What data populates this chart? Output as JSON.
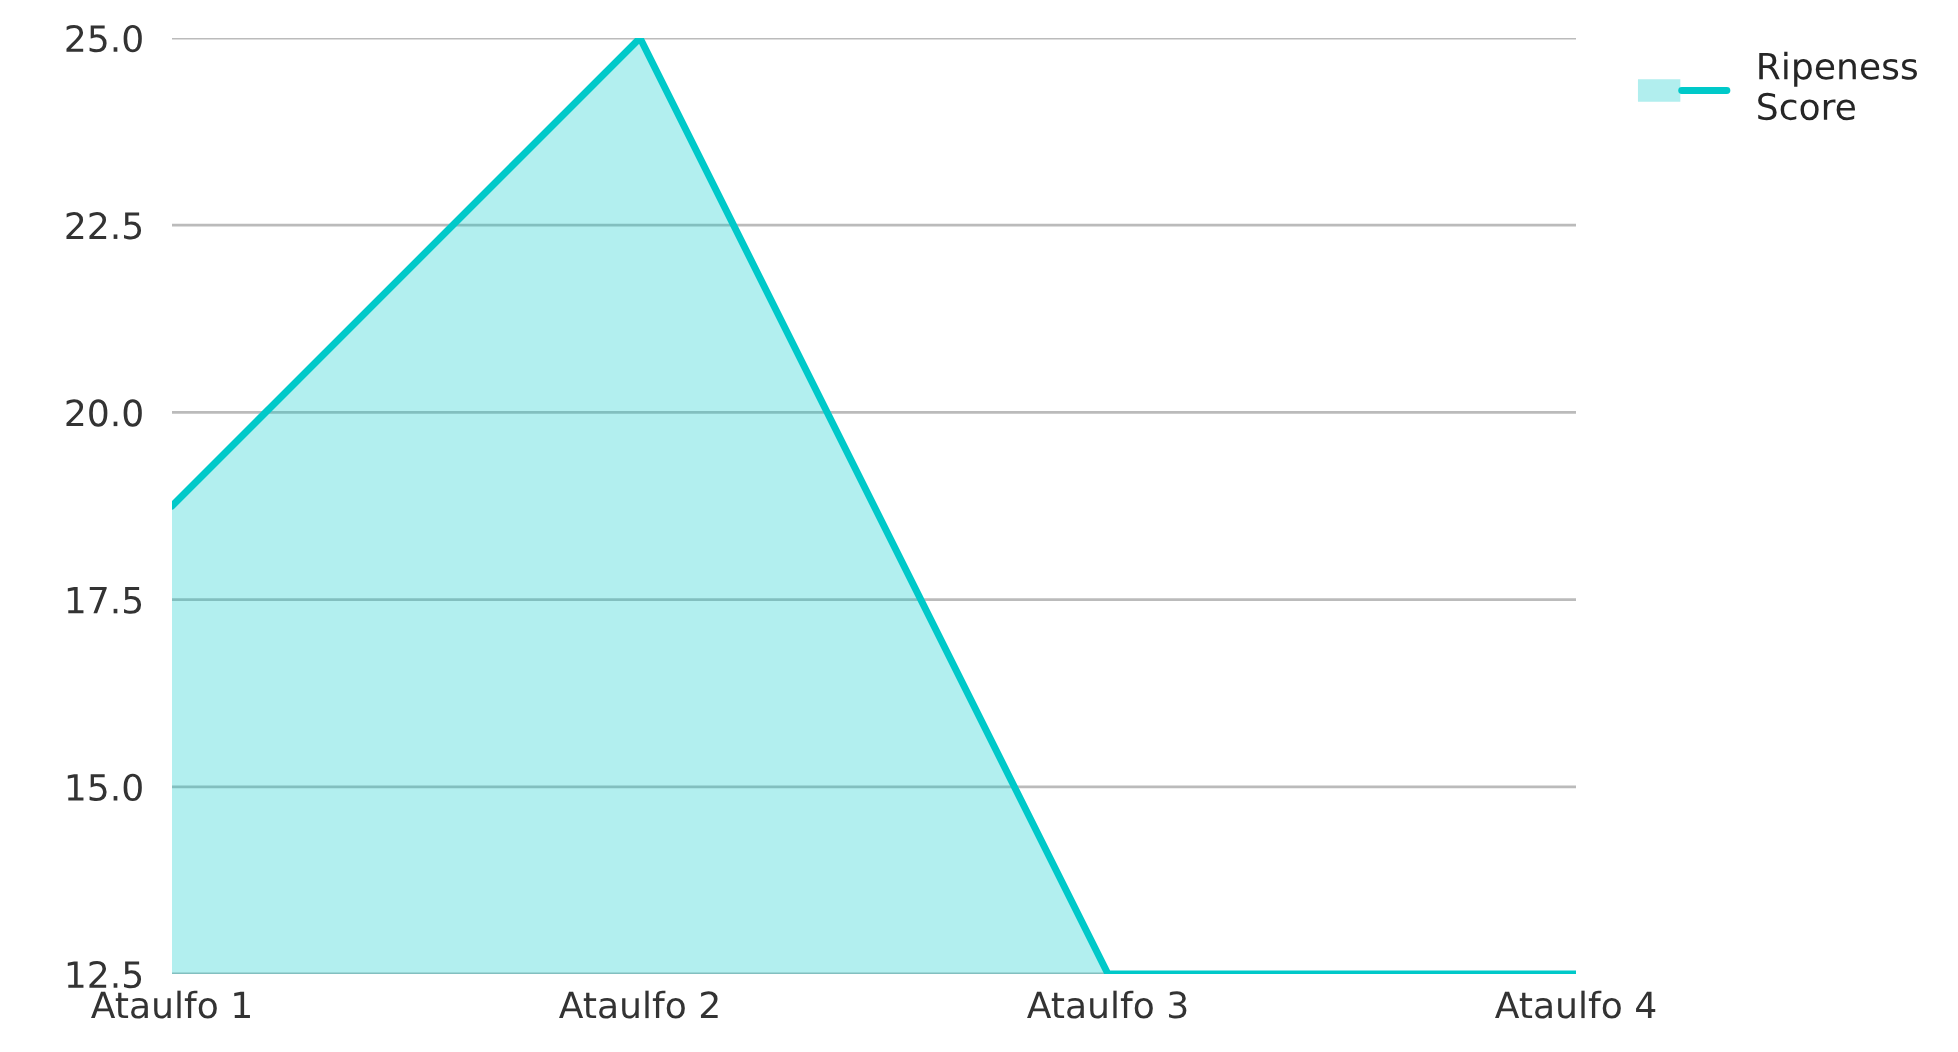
{
  "chart_data": {
    "type": "area",
    "categories": [
      "Ataulfo 1",
      "Ataulfo 2",
      "Ataulfo 3",
      "Ataulfo 4"
    ],
    "series": [
      {
        "name": "Ripeness Score",
        "color": "#00c9c9",
        "values": [
          18.75,
          25,
          12.5,
          12.5
        ]
      }
    ],
    "ylim": [
      12.5,
      25
    ],
    "yticks": [
      {
        "value": 12.5,
        "label": "12.5"
      },
      {
        "value": 15,
        "label": "15.0"
      },
      {
        "value": 17.5,
        "label": "17.5"
      },
      {
        "value": 20,
        "label": "20.0"
      },
      {
        "value": 22.5,
        "label": "22.5"
      },
      {
        "value": 25,
        "label": "25.0"
      }
    ],
    "grid": "y",
    "legend": "top right"
  }
}
